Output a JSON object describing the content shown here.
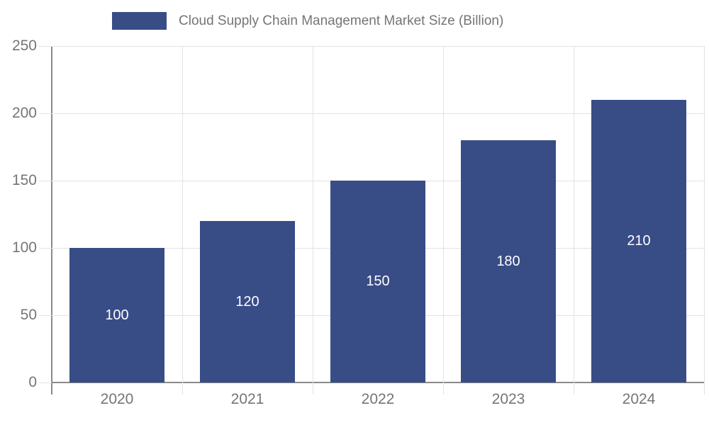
{
  "chart_data": {
    "type": "bar",
    "title": "Cloud Supply Chain Management Market Size (Billion)",
    "categories": [
      "2020",
      "2021",
      "2022",
      "2023",
      "2024"
    ],
    "values": [
      100,
      120,
      150,
      180,
      210
    ],
    "data_labels": [
      "100",
      "120",
      "150",
      "180",
      "210"
    ],
    "xlabel": "",
    "ylabel": "",
    "ylim": [
      0,
      250
    ],
    "yticks": [
      0,
      50,
      100,
      150,
      200,
      250
    ],
    "grid": "both",
    "legend_position": "top",
    "colors": {
      "bar": "#384c86",
      "grid": "#e2e2e2",
      "axis": "#8a8a8a",
      "text": "#757575",
      "bar_label": "#ffffff",
      "background": "#ffffff"
    }
  }
}
